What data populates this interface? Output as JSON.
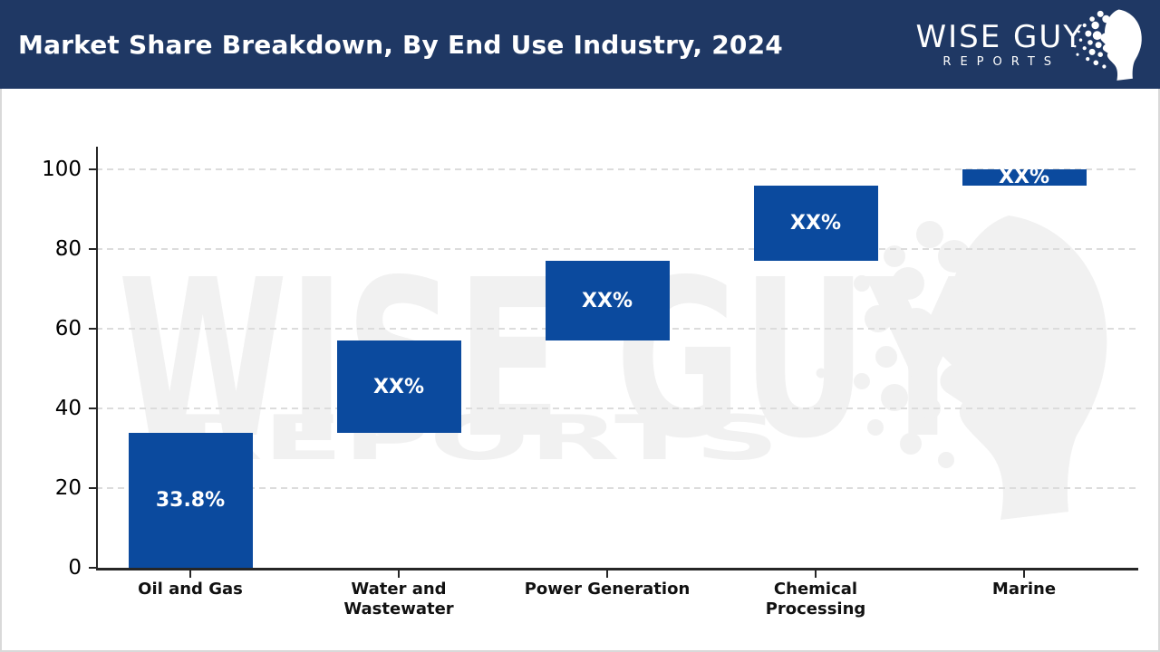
{
  "header": {
    "title": "Market Share Breakdown, By End Use Industry, 2024",
    "logo": {
      "line1": "WISE GUY",
      "line2": "REPORTS"
    }
  },
  "watermark": {
    "line1": "WISE GUY",
    "line2": "REPORTS"
  },
  "chart_data": {
    "type": "bar",
    "subtype": "waterfall-floating-bars",
    "title": "Market Share Breakdown, By End Use Industry, 2024",
    "categories": [
      "Oil and Gas",
      "Water and Wastewater",
      "Power Generation",
      "Chemical Processing",
      "Marine"
    ],
    "category_tick_lines": [
      [
        "Oil and Gas"
      ],
      [
        "Water and",
        "Wastewater"
      ],
      [
        "Power Generation"
      ],
      [
        "Chemical",
        "Processing"
      ],
      [
        "Marine"
      ]
    ],
    "segments": [
      {
        "category": "Oil and Gas",
        "start": 0,
        "end": 33.8,
        "label": "33.8%"
      },
      {
        "category": "Water and Wastewater",
        "start": 33.8,
        "end": 57,
        "label": "XX%"
      },
      {
        "category": "Power Generation",
        "start": 57,
        "end": 77,
        "label": "XX%"
      },
      {
        "category": "Chemical Processing",
        "start": 77,
        "end": 96,
        "label": "XX%"
      },
      {
        "category": "Marine",
        "start": 96,
        "end": 100,
        "label": "XX%"
      }
    ],
    "xlabel": "",
    "ylabel": "",
    "ylim": [
      0,
      100
    ],
    "yticks": [
      0,
      20,
      40,
      60,
      80,
      100
    ],
    "grid": "horizontal-dashed",
    "legend": "none",
    "colors": {
      "bar": "#0b4a9e",
      "bar_label": "#ffffff",
      "header_bg": "#1f3864",
      "axis": "#262626",
      "gridline": "#dcdcdc",
      "watermark": "#f1f1f1",
      "frame": "#d9d9d9"
    }
  }
}
